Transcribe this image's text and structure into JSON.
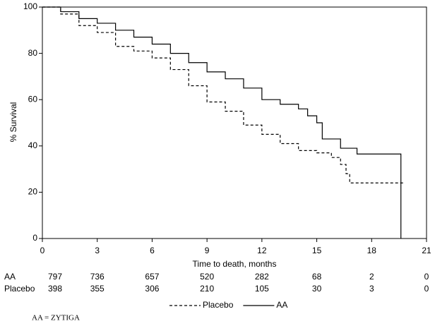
{
  "chart_data": {
    "type": "line",
    "step": true,
    "xlabel": "Time to death, months",
    "ylabel": "% Survival",
    "xlim": [
      0,
      21
    ],
    "xticks": [
      0,
      3,
      6,
      9,
      12,
      15,
      18,
      21
    ],
    "ylim": [
      0,
      100
    ],
    "yticks": [
      0,
      20,
      40,
      60,
      80,
      100
    ],
    "series": [
      {
        "name": "AA",
        "color": "#000000",
        "dash": false,
        "x": [
          0,
          1,
          2,
          3,
          4,
          5,
          6,
          7,
          8,
          9,
          10,
          11,
          12,
          13,
          14,
          14.5,
          15,
          15.3,
          16.3,
          17.2,
          19.6
        ],
        "values": [
          100,
          98,
          95,
          93,
          90,
          87,
          84,
          80,
          76,
          72,
          69,
          65,
          60,
          58,
          56,
          53,
          50,
          43,
          39,
          36.5,
          0
        ]
      },
      {
        "name": "Placebo",
        "color": "#000000",
        "dash": true,
        "x": [
          0,
          1,
          2,
          3,
          4,
          5,
          6,
          7,
          8,
          9,
          10,
          11,
          12,
          13,
          14,
          15,
          15.8,
          16.3,
          16.6,
          16.8,
          19.8
        ],
        "values": [
          100,
          97,
          92,
          89,
          83,
          81,
          78,
          73,
          66,
          59,
          55,
          49,
          45,
          41,
          38,
          37,
          35,
          32,
          28,
          24,
          24
        ]
      }
    ],
    "risk_table": [
      {
        "label": "AA",
        "values": [
          797,
          736,
          657,
          520,
          282,
          68,
          2,
          0
        ]
      },
      {
        "label": "Placebo",
        "values": [
          398,
          355,
          306,
          210,
          105,
          30,
          3,
          0
        ]
      }
    ],
    "legend_order": [
      1,
      0
    ],
    "footnote": "AA = ZYTIGA"
  }
}
